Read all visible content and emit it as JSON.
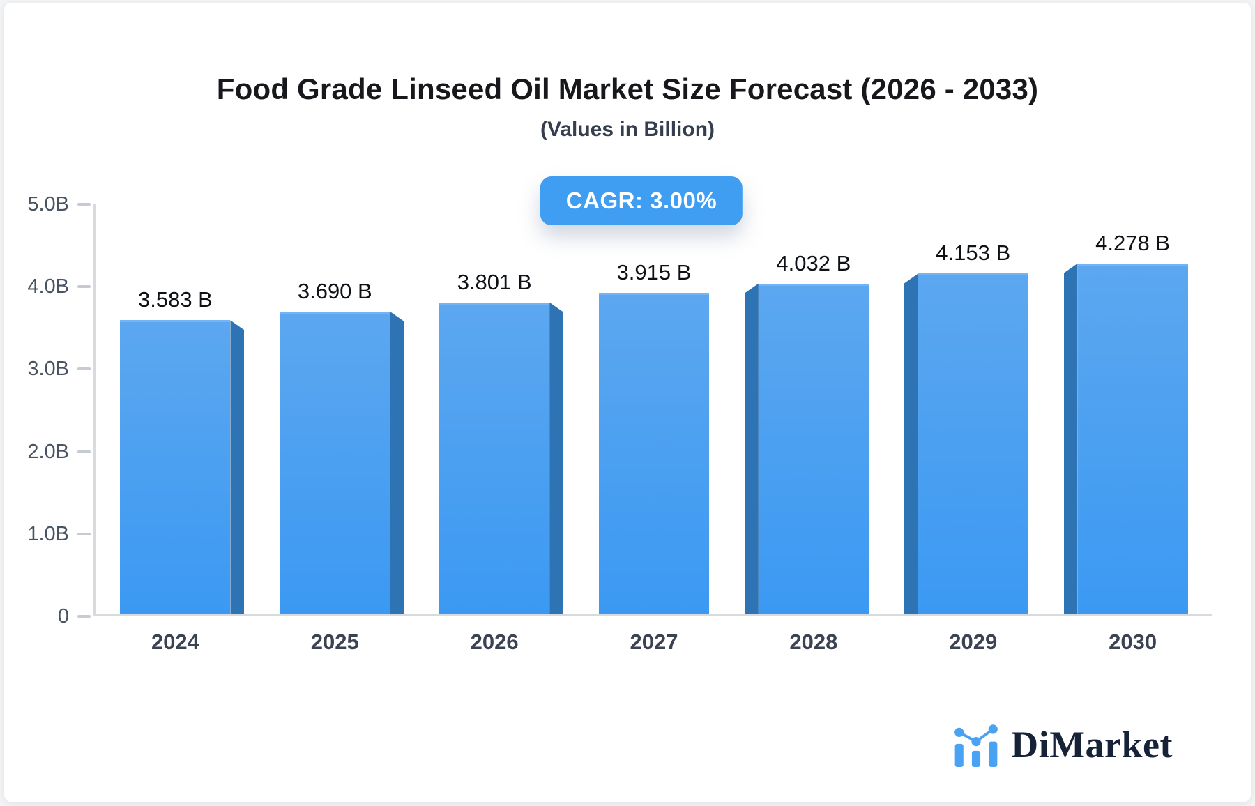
{
  "header": {
    "title": "Food Grade Linseed Oil Market Size Forecast (2026 - 2033)",
    "subtitle": "(Values in Billion)"
  },
  "badge": {
    "label": "CAGR: 3.00%",
    "background": "#3f9ef2",
    "text_color": "#ffffff"
  },
  "chart_data": {
    "type": "bar",
    "categories": [
      "2024",
      "2025",
      "2026",
      "2027",
      "2028",
      "2029",
      "2030"
    ],
    "values": [
      3.583,
      3.69,
      3.801,
      3.915,
      4.032,
      4.153,
      4.278
    ],
    "value_labels": [
      "3.583 B",
      "3.690 B",
      "3.801 B",
      "3.915 B",
      "4.032 B",
      "4.153 B",
      "4.278 B"
    ],
    "title": "Food Grade Linseed Oil Market Size Forecast (2026 - 2033)",
    "xlabel": "",
    "ylabel": "",
    "ylim": [
      0,
      5
    ],
    "y_ticks": [
      "5.0B",
      "4.0B",
      "3.0B",
      "2.0B",
      "1.0B",
      "0"
    ],
    "y_tick_values": [
      5,
      4,
      3,
      2,
      1,
      0
    ],
    "grid": false,
    "legend": "none",
    "style_3d": true,
    "colors": {
      "face_top": "#5ca7f0",
      "face_bottom": "#3b99f2",
      "side": "#2e74b5"
    }
  },
  "footer": {
    "brand": "DiMarket",
    "logo_color": "#4aa2f5",
    "text_color": "#152238"
  }
}
